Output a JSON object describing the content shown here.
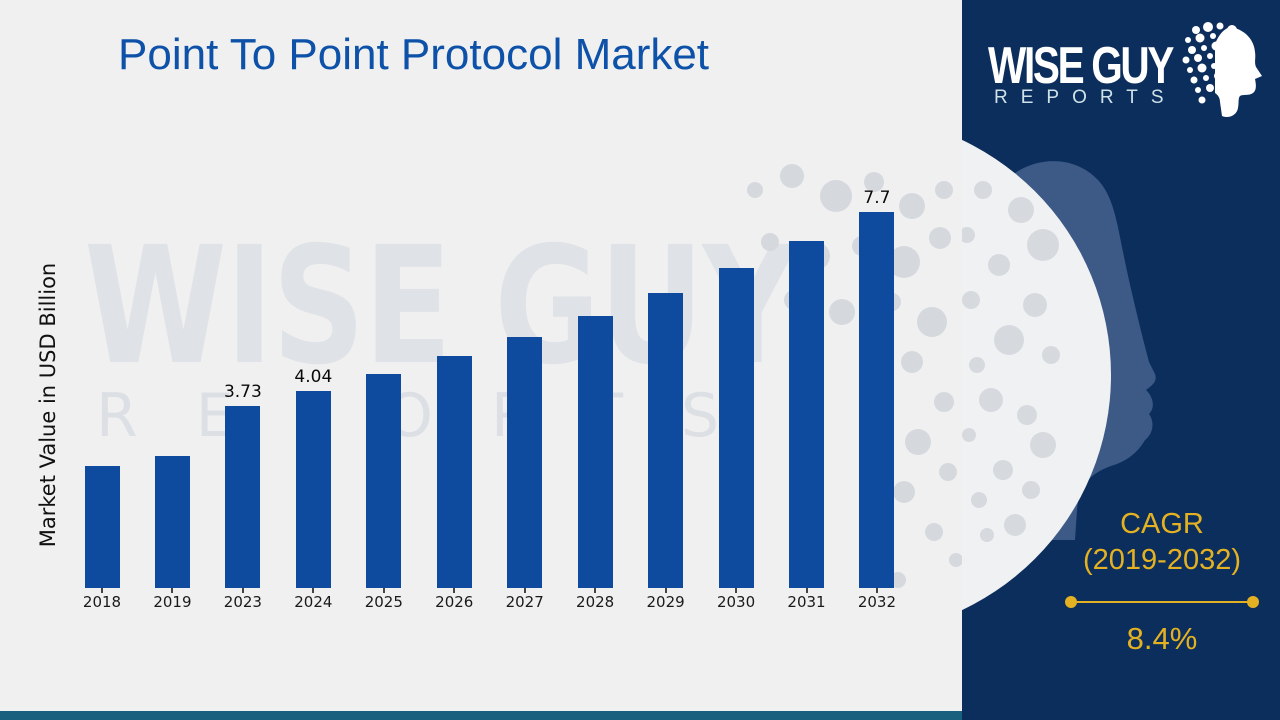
{
  "header": {
    "title": "Point To Point Protocol Market"
  },
  "watermark": {
    "line1": "WISE GUY",
    "line2": "REPORTS"
  },
  "logo": {
    "line1": "WISE GUY",
    "line2": "REPORTS"
  },
  "panel": {
    "cagr_label": "CAGR",
    "cagr_range": "(2019-2032)",
    "cagr_value": "8.4%"
  },
  "chart_data": {
    "type": "bar",
    "title": "Point To Point Protocol Market",
    "xlabel": "",
    "ylabel": "Market Value in USD Billion",
    "units": "USD Billion",
    "categories": [
      "2018",
      "2019",
      "2023",
      "2024",
      "2025",
      "2026",
      "2027",
      "2028",
      "2029",
      "2030",
      "2031",
      "2032"
    ],
    "values": [
      2.5,
      2.71,
      3.73,
      4.04,
      4.38,
      4.75,
      5.15,
      5.58,
      6.05,
      6.56,
      7.11,
      7.7
    ],
    "value_labels_shown": {
      "2023": "3.73",
      "2024": "4.04",
      "2032": "7.7"
    },
    "ylim": [
      0,
      8.2
    ],
    "grid": false,
    "legend": "none",
    "bar_color": "#0e4b9e"
  },
  "colors": {
    "title_blue": "#0d52a8",
    "bar_blue": "#0e4b9e",
    "panel_navy": "#0c2e5c",
    "accent_gold": "#e4b122",
    "footer_teal": "#19607f",
    "watermark_gray": "#dfe2e6",
    "face_slate": "#3d5a87"
  }
}
